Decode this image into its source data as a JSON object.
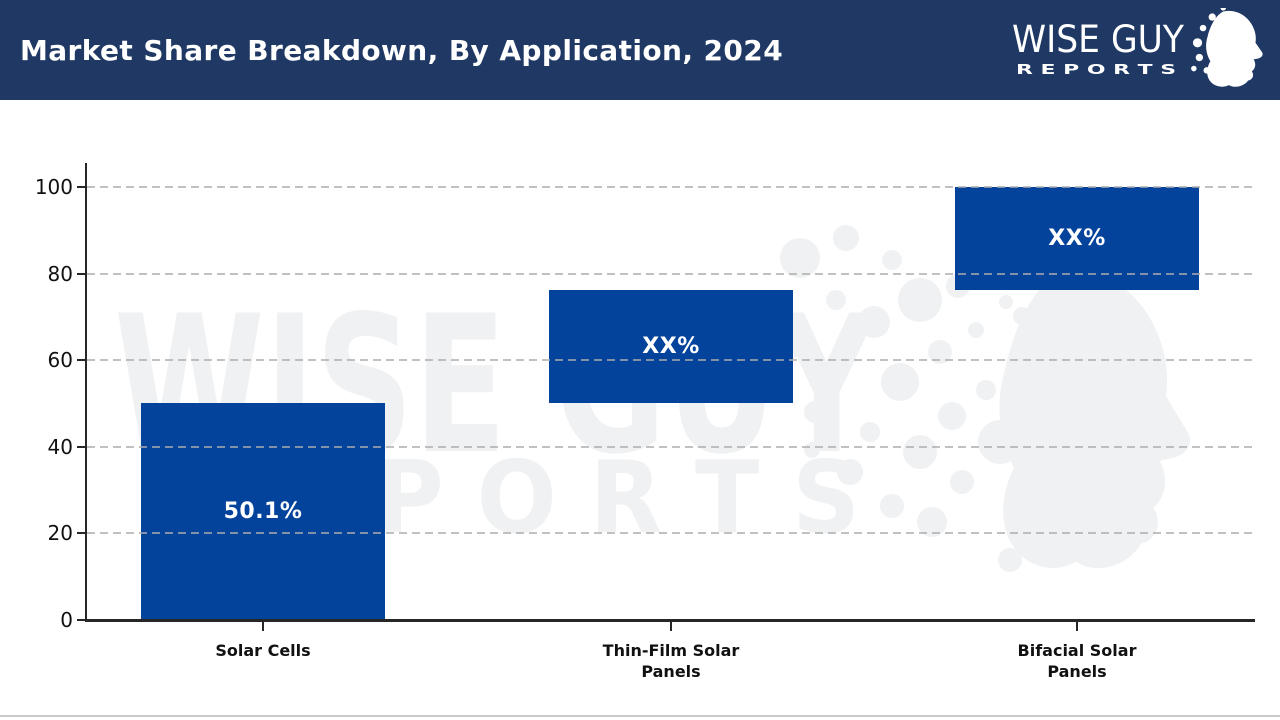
{
  "header": {
    "title": "Market Share Breakdown, By Application, 2024",
    "logo": {
      "name_top": "WISE GUY",
      "name_bottom": "R E P O R T S"
    }
  },
  "watermark": {
    "text_top": "WISE GUY",
    "text_bottom": "R E P O R T S"
  },
  "chart_data": {
    "type": "bar",
    "subtype": "stacked_waterfall_percent",
    "title": "Market Share Breakdown, By Application, 2024",
    "categories": [
      "Solar Cells",
      "Thin-Film Solar\nPanels",
      "Bifacial Solar\nPanels"
    ],
    "segments": [
      {
        "category": "Solar Cells",
        "start": 0,
        "end": 50.1,
        "label": "50.1%"
      },
      {
        "category": "Thin-Film Solar Panels",
        "start": 50.1,
        "end": 76.3,
        "label": "XX%"
      },
      {
        "category": "Bifacial Solar Panels",
        "start": 76.3,
        "end": 100.0,
        "label": "XX%"
      }
    ],
    "values_estimated": [
      50.1,
      26.2,
      23.7
    ],
    "yticks": [
      0,
      20,
      40,
      60,
      80,
      100
    ],
    "ylim": [
      0,
      105.5
    ],
    "xlabel": "",
    "ylabel": "",
    "grid": "horizontal_dashed",
    "legend": "none",
    "bar_color": "#04439c",
    "bar_label_color": "#ffffff"
  },
  "colors": {
    "header_bg": "#1f3864",
    "bar": "#04439c",
    "axis": "#262626",
    "grid": "#acacac",
    "watermark": "#f0f1f3",
    "tick_text": "#111111"
  }
}
